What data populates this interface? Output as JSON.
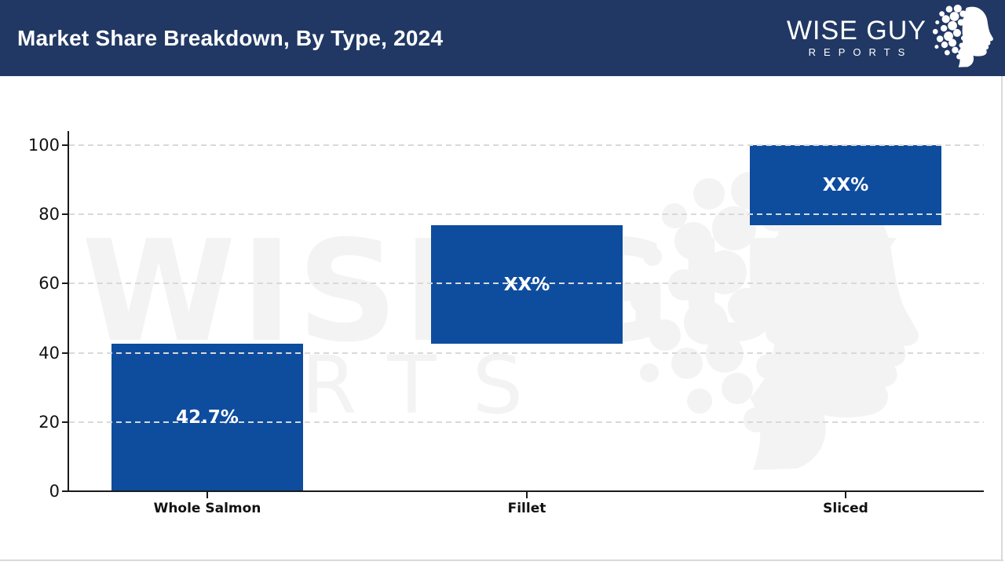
{
  "header": {
    "title": "Market Share Breakdown, By Type, 2024",
    "logo": {
      "line1": "WISE GUY",
      "line2": "REPORTS"
    }
  },
  "watermark": {
    "line1": "WISE GUY",
    "line2": "PORTS"
  },
  "chart_data": {
    "type": "bar",
    "subtype": "waterfall",
    "title": "Market Share Breakdown, By Type, 2024",
    "categories": [
      "Whole Salmon",
      "Fillet",
      "Sliced"
    ],
    "segments": [
      {
        "category": "Whole Salmon",
        "base": 0,
        "top": 42.7,
        "label": "42.7%"
      },
      {
        "category": "Fillet",
        "base": 42.7,
        "top": 76.8,
        "label": "XX%"
      },
      {
        "category": "Sliced",
        "base": 76.8,
        "top": 100,
        "label": "XX%"
      }
    ],
    "y_ticks": [
      0,
      20,
      40,
      60,
      80,
      100
    ],
    "ylim": [
      0,
      105
    ],
    "xlabel": "",
    "ylabel": "",
    "grid": "horizontal-dashed",
    "legend": "none",
    "colors": {
      "bar": "#0e4c9e",
      "bar_label": "#ffffff",
      "grid": "#d9d9d9",
      "axis": "#1a1a1a",
      "header_bg": "#213864",
      "watermark": "#f3f3f3"
    }
  }
}
